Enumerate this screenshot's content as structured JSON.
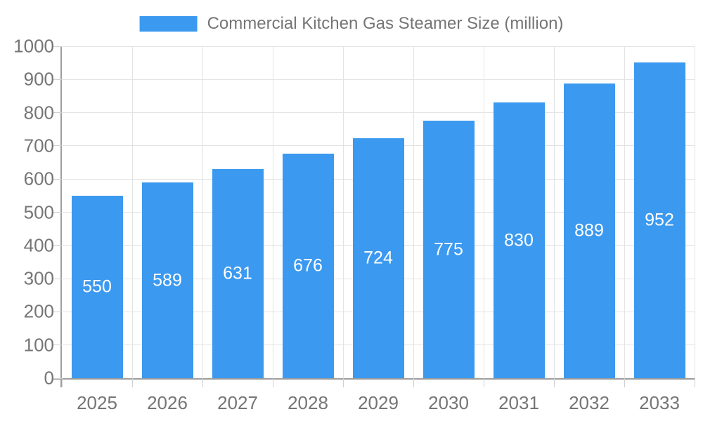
{
  "chart_data": {
    "type": "bar",
    "title": "Commercial Kitchen Gas Steamer Size (million)",
    "categories": [
      "2025",
      "2026",
      "2027",
      "2028",
      "2029",
      "2030",
      "2031",
      "2032",
      "2033"
    ],
    "values": [
      550,
      589,
      631,
      676,
      724,
      775,
      830,
      889,
      952
    ],
    "xlabel": "",
    "ylabel": "",
    "ylim": [
      0,
      1000
    ],
    "ytick_interval": 100,
    "ytick_labels": [
      "0",
      "100",
      "200",
      "300",
      "400",
      "500",
      "600",
      "700",
      "800",
      "900",
      "1000"
    ],
    "grid": true,
    "legend_position": "top-center",
    "bar_value_labels_inside": true,
    "colors": {
      "bar": "#3B99F0",
      "bar_value_text": "#ffffff",
      "axis_text": "#757575",
      "legend_text": "#757575",
      "gridline": "#e3e3e3",
      "tick": "#cfcfcf",
      "axis_line": "#9e9e9e",
      "background": "#ffffff"
    }
  }
}
